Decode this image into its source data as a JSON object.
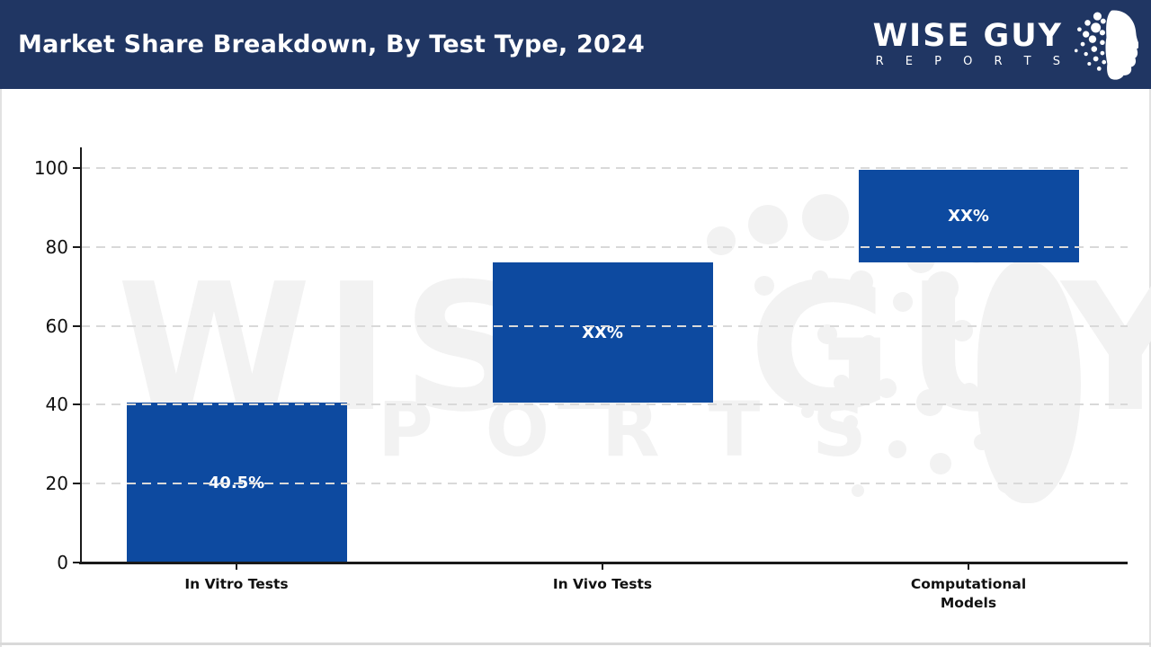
{
  "page": {
    "background": "#ffffff",
    "edge_line_color": "#d9d9d9"
  },
  "header": {
    "background": "#203663",
    "title": "Market Share Breakdown, By Test Type, 2024",
    "logo": {
      "wise_guy": "WISE GUY",
      "reports": "R E P O R T S",
      "head_icon": "dotted-face-profile-icon",
      "color": "#ffffff"
    }
  },
  "watermark": {
    "text_top": "WISE GUY",
    "text_bottom": "REPORTS",
    "color": "#f2f2f2"
  },
  "chart_data": {
    "type": "bar",
    "subtype": "floating-segment-waterfall",
    "title": "Market Share Breakdown, By Test Type, 2024",
    "categories": [
      "In Vitro Tests",
      "In Vivo Tests",
      "Computational Models"
    ],
    "bars": [
      {
        "category": "In Vitro Tests",
        "from": 0,
        "to": 40.5,
        "label": "40.5%"
      },
      {
        "category": "In Vivo Tests",
        "from": 40.5,
        "to": 76,
        "label": "XX%"
      },
      {
        "category": "Computational Models",
        "from": 76,
        "to": 99.6,
        "label": "XX%"
      }
    ],
    "xlabel": "",
    "ylabel": "",
    "yticks": [
      0,
      20,
      40,
      60,
      80,
      100
    ],
    "ylim": [
      0,
      105
    ],
    "bar_color": "#0d4aa0",
    "bar_label_color": "#ffffff",
    "grid": "horizontal-dashed",
    "grid_on_top_of_bars": true,
    "legend_position": "none"
  }
}
